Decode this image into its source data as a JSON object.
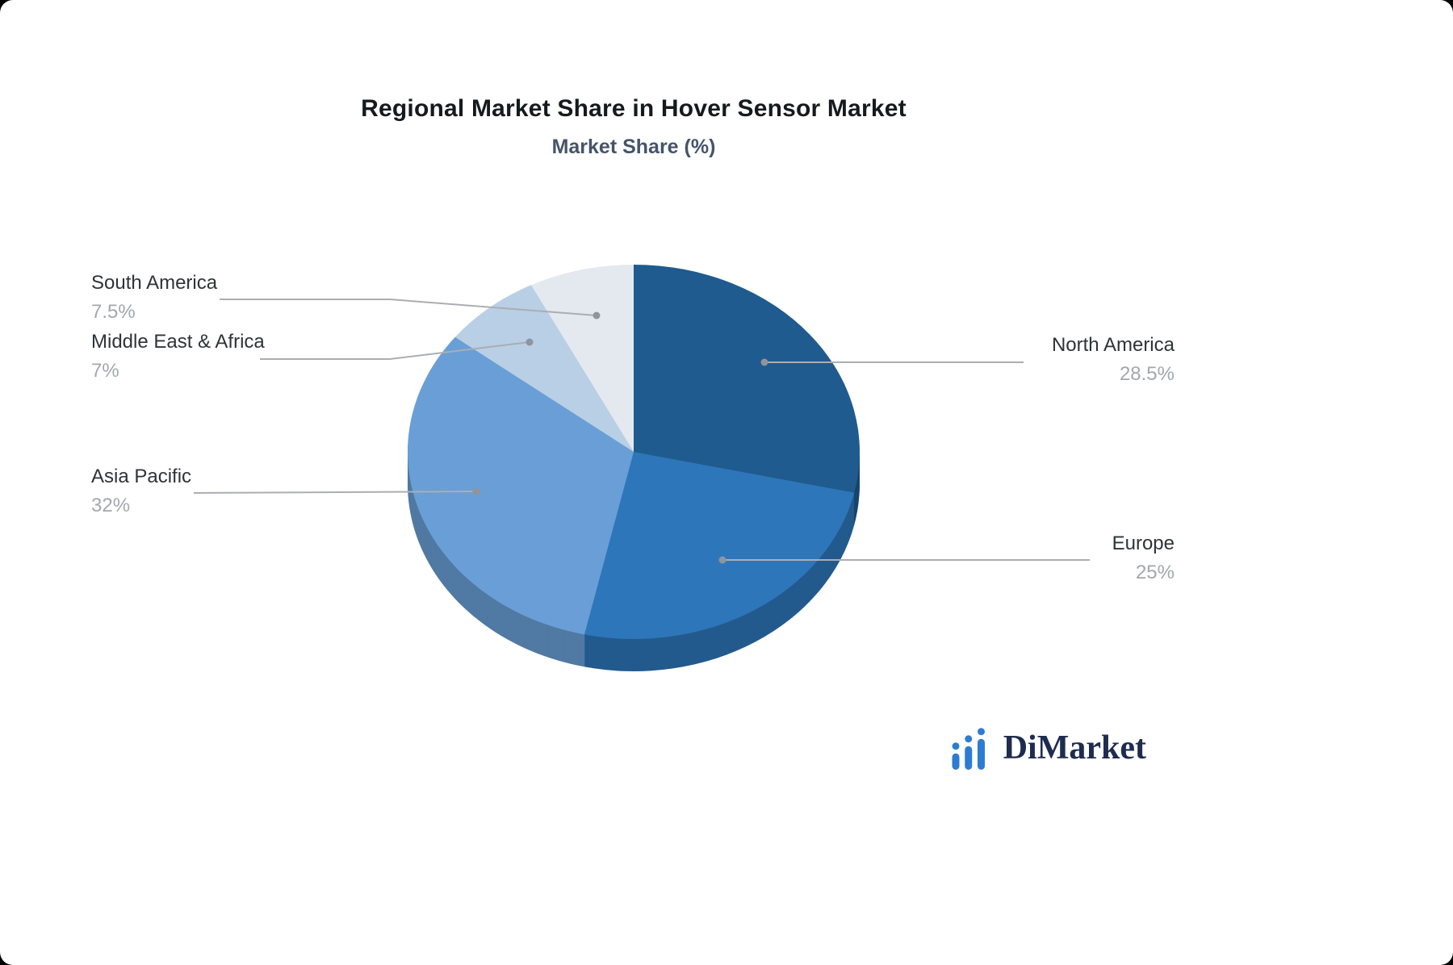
{
  "chart_data": {
    "type": "pie",
    "title": "Regional Market Share in Hover Sensor Market",
    "subtitle": "Market Share (%)",
    "unit": "%",
    "effect": "3d",
    "direction": "clockwise",
    "start_angle_deg": 0,
    "labels_style": "callout",
    "slices": [
      {
        "label": "North America",
        "value": 28.5,
        "display": "28.5%",
        "color": "#1f5b8e"
      },
      {
        "label": "Europe",
        "value": 25,
        "display": "25%",
        "color": "#2e76ba"
      },
      {
        "label": "Asia Pacific",
        "value": 32,
        "display": "32%",
        "color": "#699fd6"
      },
      {
        "label": "Middle East & Africa",
        "value": 7,
        "display": "7%",
        "color": "#b9cfe5"
      },
      {
        "label": "South America",
        "value": 7.5,
        "display": "7.5%",
        "color": "#e4e9ef"
      }
    ]
  },
  "branding": {
    "logo_text": "DiMarket",
    "logo_color": "#1e2c4f",
    "icon_color": "#2e7cd2"
  }
}
